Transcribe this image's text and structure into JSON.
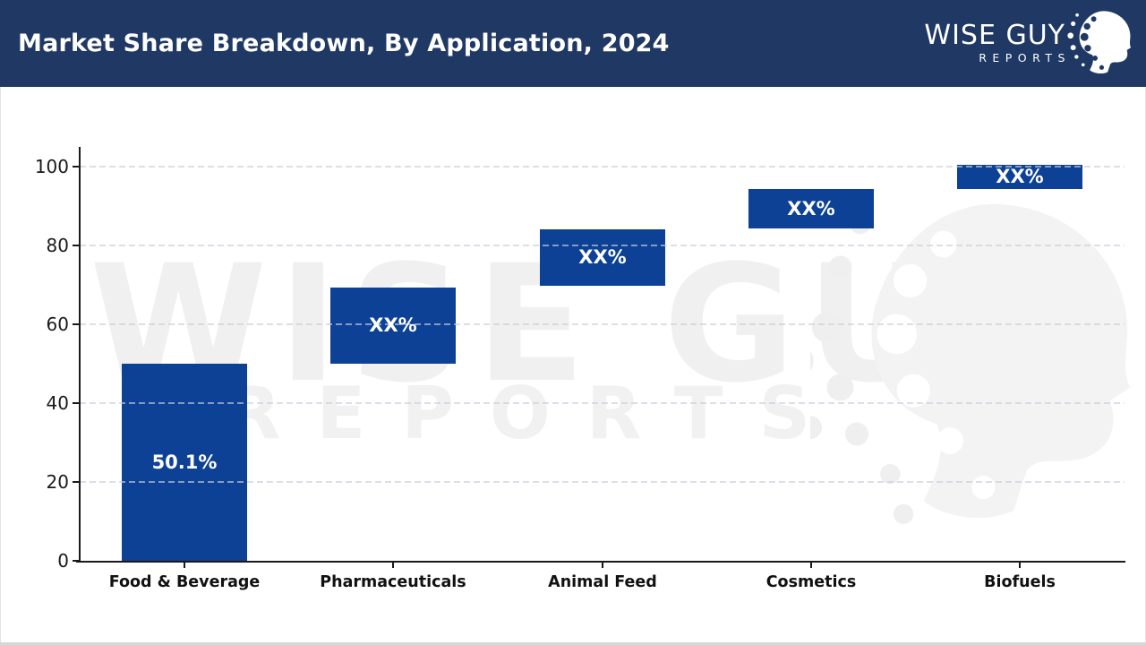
{
  "header": {
    "title": "Market Share Breakdown, By Application, 2024",
    "background_color": "#1f3864",
    "logo": {
      "name": "WISE GUY",
      "subtitle": "REPORTS"
    }
  },
  "watermark": {
    "line1": "WISE GUY",
    "line2": "REPORTS"
  },
  "chart_data": {
    "type": "bar",
    "variant": "waterfall",
    "title": "Market Share Breakdown, By Application, 2024",
    "xlabel": "",
    "ylabel": "",
    "ylim": [
      0,
      105
    ],
    "yticks": [
      0,
      20,
      40,
      60,
      80,
      100
    ],
    "grid": "dashed-horizontal",
    "legend": "none",
    "bar_color": "#0c4195",
    "bar_label_color": "#ffffff",
    "axis_color": "#1a1a1a",
    "categories": [
      "Food & Beverage",
      "Pharmaceuticals",
      "Animal Feed",
      "Cosmetics",
      "Biofuels"
    ],
    "segments": [
      {
        "category": "Food & Beverage",
        "start": 0,
        "end": 50.1,
        "value": 50.1,
        "label": "50.1%"
      },
      {
        "category": "Pharmaceuticals",
        "start": 50.1,
        "end": 69.3,
        "value": 19.2,
        "label": "XX%"
      },
      {
        "category": "Animal Feed",
        "start": 69.8,
        "end": 84.1,
        "value": 14.3,
        "label": "XX%"
      },
      {
        "category": "Cosmetics",
        "start": 84.3,
        "end": 94.3,
        "value": 10.0,
        "label": "XX%"
      },
      {
        "category": "Biofuels",
        "start": 94.4,
        "end": 100.4,
        "value": 6.0,
        "label": "XX%"
      }
    ]
  }
}
